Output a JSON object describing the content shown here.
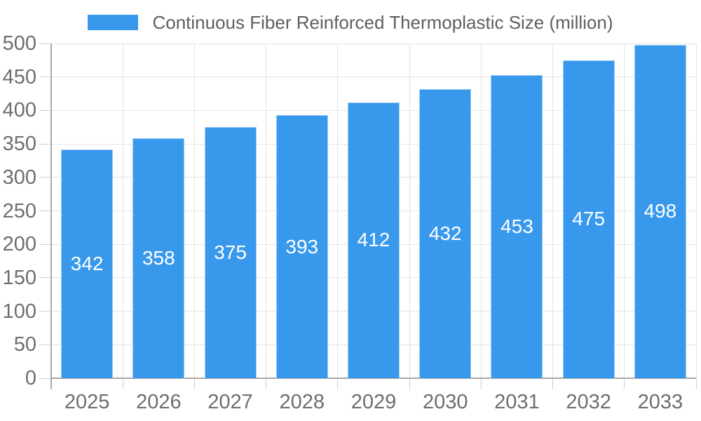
{
  "legend": {
    "label": "Continuous Fiber Reinforced Thermoplastic Size (million)"
  },
  "colors": {
    "bar": "#3899EC",
    "grid": "#E4E4E4",
    "axis": "#A8A8A8",
    "tick": "#CFCFCF",
    "tick_label": "#6E6E6E",
    "legend_text": "#5E5F62",
    "bar_value_text": "#FFFFFF"
  },
  "chart_data": {
    "type": "bar",
    "title": "Continuous Fiber Reinforced Thermoplastic Size (million)",
    "categories": [
      "2025",
      "2026",
      "2027",
      "2028",
      "2029",
      "2030",
      "2031",
      "2032",
      "2033"
    ],
    "values": [
      342,
      358,
      375,
      393,
      412,
      432,
      453,
      475,
      498
    ],
    "xlabel": "",
    "ylabel": "",
    "ylim": [
      0,
      500
    ],
    "yticks": [
      0,
      50,
      100,
      150,
      200,
      250,
      300,
      350,
      400,
      450,
      500
    ],
    "grid": true,
    "legend_position": "top",
    "value_label_position": "inside-center"
  }
}
